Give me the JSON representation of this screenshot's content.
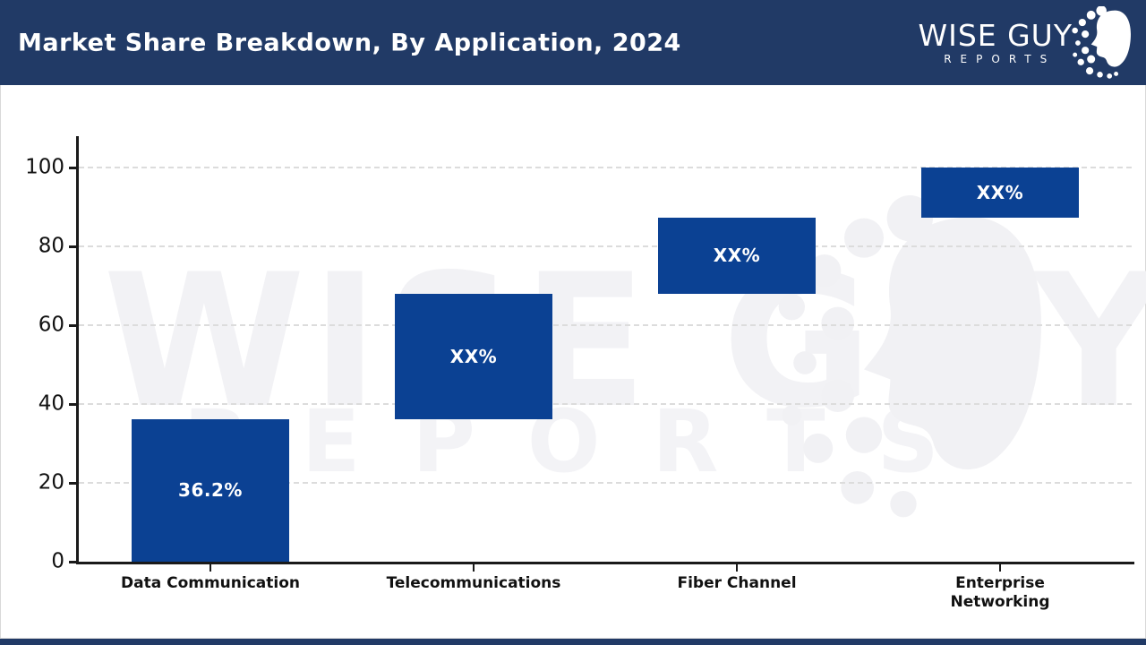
{
  "header": {
    "title": "Market Share Breakdown, By Application, 2024",
    "bg_color": "#213a66",
    "logo": {
      "line1": "WISE GUY",
      "line2": "REPORTS"
    }
  },
  "watermark": {
    "line1": "WISE GUY",
    "line2": "REPORTS"
  },
  "chart_data": {
    "type": "bar",
    "subtype": "waterfall",
    "title": "Market Share Breakdown, By Application, 2024",
    "xlabel": "",
    "ylabel": "",
    "ylim": [
      0,
      100
    ],
    "yticks": [
      0,
      20,
      40,
      60,
      80,
      100
    ],
    "grid": "horizontal-dashed",
    "bar_color": "#0b4193",
    "label_color": "#ffffff",
    "categories": [
      "Data Communication",
      "Telecommunications",
      "Fiber Channel",
      "Enterprise\nNetworking"
    ],
    "bars": [
      {
        "category": "Data Communication",
        "start": 0,
        "end": 36.2,
        "value": 36.2,
        "label": "36.2%"
      },
      {
        "category": "Telecommunications",
        "start": 36.2,
        "end": 68.0,
        "value": 31.8,
        "label": "XX%"
      },
      {
        "category": "Fiber Channel",
        "start": 68.0,
        "end": 87.3,
        "value": 19.3,
        "label": "XX%"
      },
      {
        "category": "Enterprise\nNetworking",
        "start": 87.3,
        "end": 100.0,
        "value": 12.7,
        "label": "XX%"
      }
    ]
  }
}
